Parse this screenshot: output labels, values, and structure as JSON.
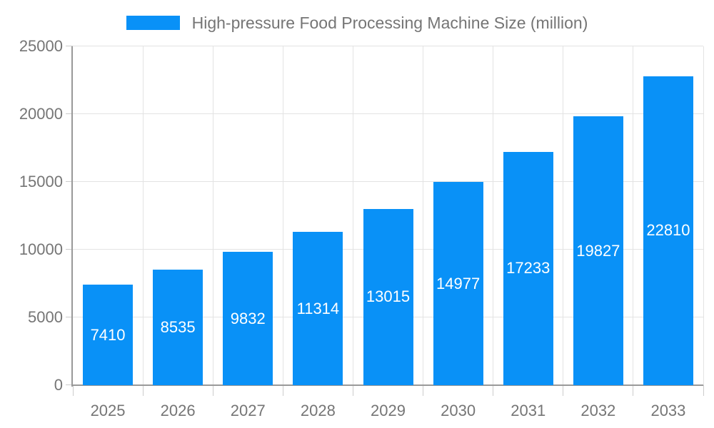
{
  "chart_data": {
    "type": "bar",
    "title": "High-pressure Food Processing Machine Size (million)",
    "categories": [
      "2025",
      "2026",
      "2027",
      "2028",
      "2029",
      "2030",
      "2031",
      "2032",
      "2033"
    ],
    "values": [
      7410,
      8535,
      9832,
      11314,
      13015,
      14977,
      17233,
      19827,
      22810
    ],
    "xlabel": "",
    "ylabel": "",
    "ylim": [
      0,
      25000
    ],
    "yticks": [
      0,
      5000,
      10000,
      15000,
      20000,
      25000
    ],
    "grid": true,
    "legend_position": "top",
    "value_label_position": "inside-center",
    "colors": {
      "bar": "#0991f7",
      "grid": "#e3e3e3",
      "tick": "#cccccc",
      "axis_line": "#999999",
      "axis_text": "#757575",
      "value_label": "#ffffff",
      "background": "#ffffff"
    }
  }
}
